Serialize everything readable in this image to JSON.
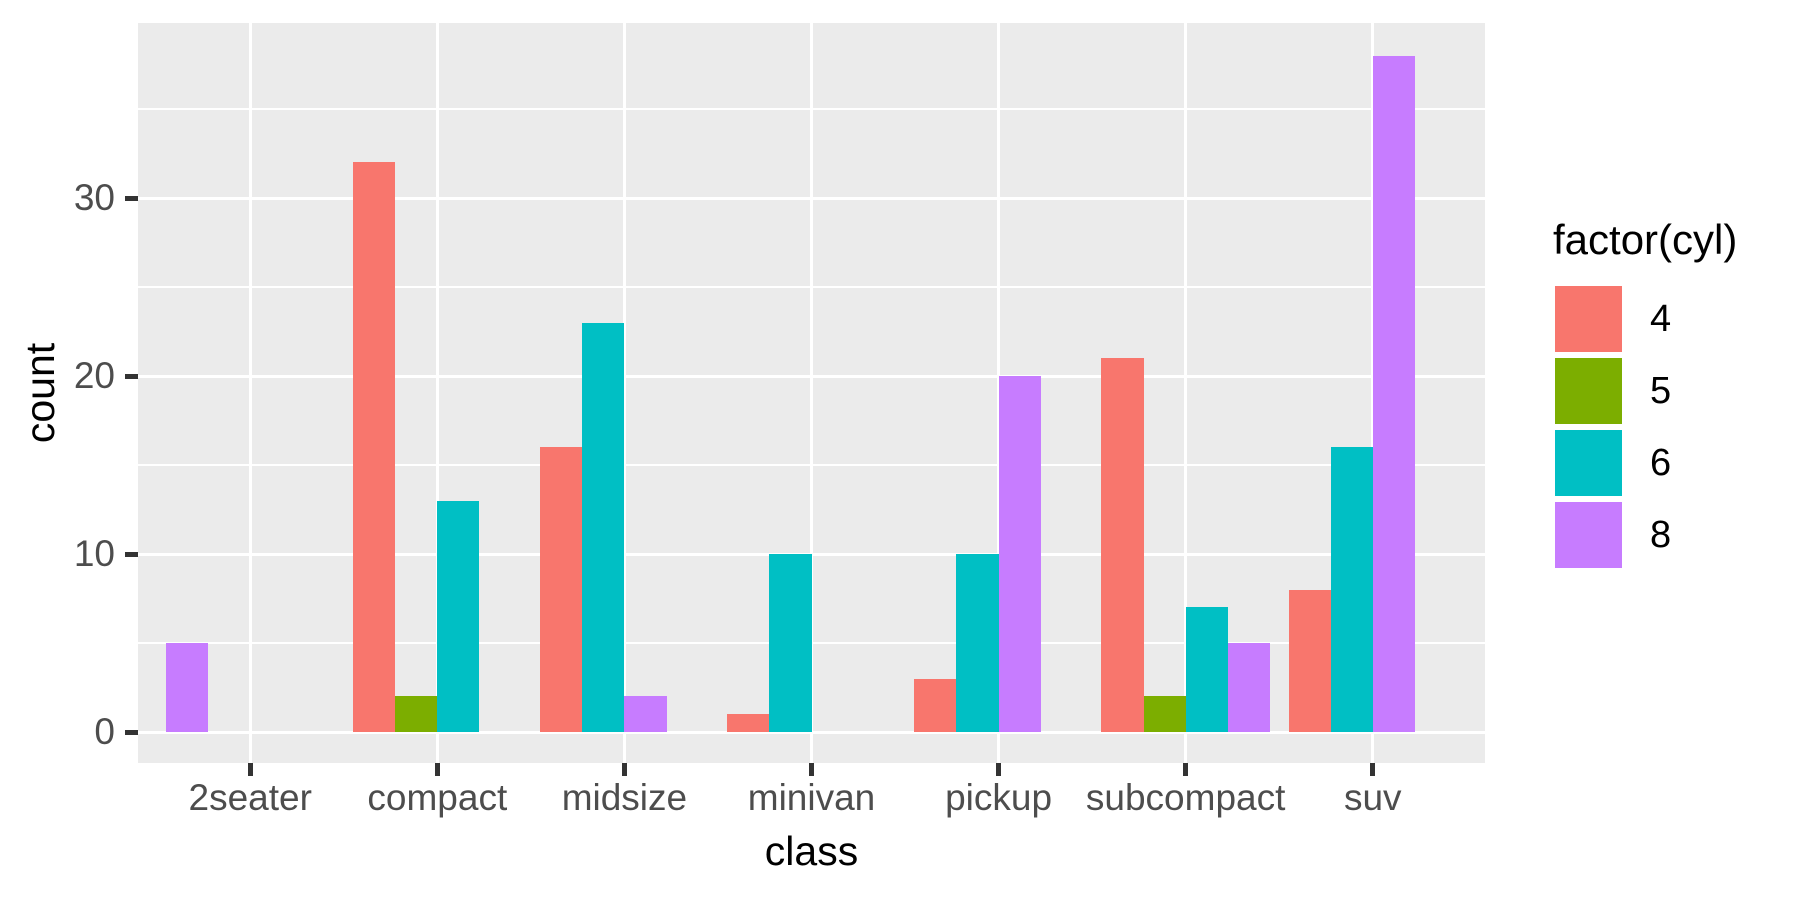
{
  "chart_data": {
    "type": "bar",
    "mode": "dodged",
    "title": "",
    "xlabel": "class",
    "ylabel": "count",
    "legend_title": "factor(cyl)",
    "legend_position": "right",
    "categories": [
      "2seater",
      "compact",
      "midsize",
      "minivan",
      "pickup",
      "subcompact",
      "suv"
    ],
    "series": [
      {
        "name": "4",
        "color": "#F8766D",
        "values": [
          null,
          32,
          16,
          1,
          3,
          21,
          8
        ]
      },
      {
        "name": "5",
        "color": "#7CAE00",
        "values": [
          null,
          2,
          null,
          null,
          null,
          2,
          null
        ]
      },
      {
        "name": "6",
        "color": "#00BFC4",
        "values": [
          null,
          13,
          23,
          10,
          10,
          7,
          16
        ]
      },
      {
        "name": "8",
        "color": "#C77CFF",
        "values": [
          5,
          null,
          2,
          null,
          20,
          5,
          38
        ]
      }
    ],
    "y_major_ticks": [
      0,
      10,
      20,
      30
    ],
    "y_minor_ticks": [
      5,
      15,
      25,
      35
    ],
    "ylim": [
      0,
      39.9
    ],
    "grid": "white major+minor horizontal, white major vertical at category centers, grid on",
    "panel_background": "#EBEBEB",
    "gridline_color": "#FFFFFF",
    "tick_mark_color": "#333333",
    "tick_label_color": "#4D4D4D",
    "axis_title_color": "#000000"
  }
}
